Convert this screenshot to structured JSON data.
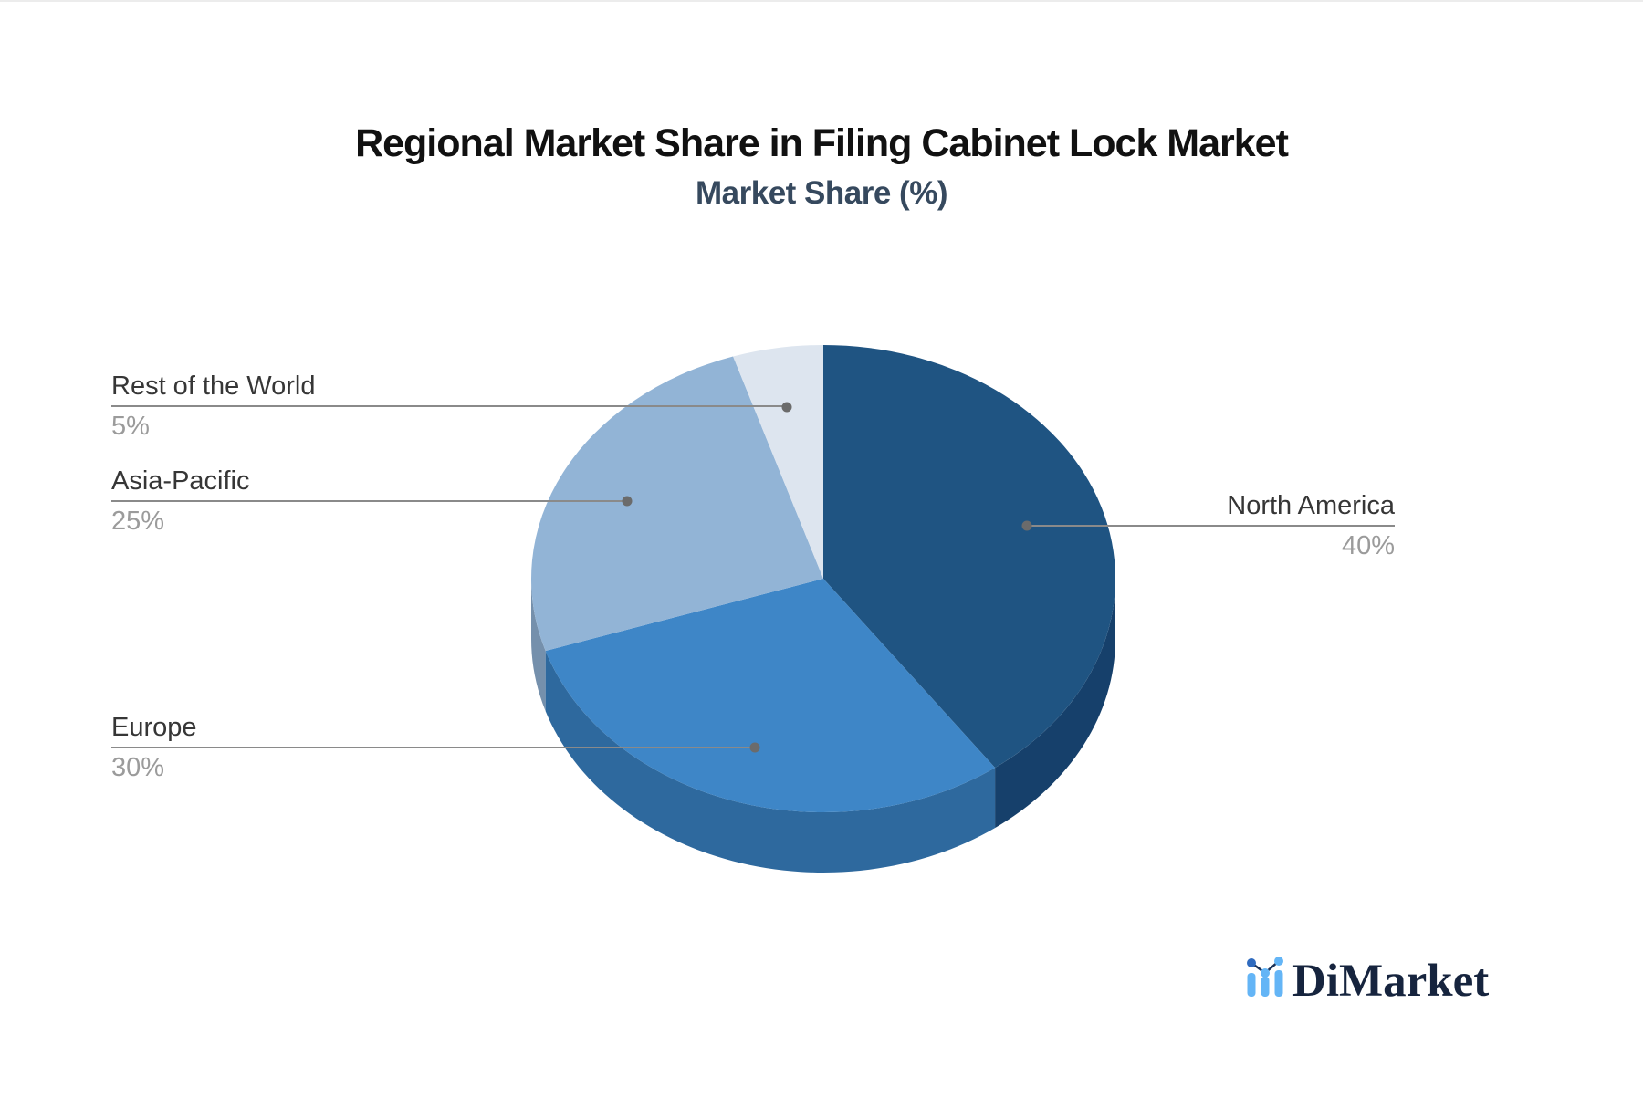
{
  "title": "Regional Market Share in Filing Cabinet Lock Market",
  "subtitle": "Market Share (%)",
  "chart_data": {
    "type": "pie",
    "style": "3d",
    "unit": "%",
    "start_angle_deg": 0,
    "direction": "clockwise",
    "legend_position": "callout-labels",
    "slices": [
      {
        "label": "North America",
        "value": 40,
        "display_value": "40%",
        "color": "#1F5482",
        "side_color": "#16406B",
        "label_side": "right"
      },
      {
        "label": "Europe",
        "value": 30,
        "display_value": "30%",
        "color": "#3E86C7",
        "side_color": "#2E699E",
        "label_side": "left"
      },
      {
        "label": "Asia-Pacific",
        "value": 25,
        "display_value": "25%",
        "color": "#92B4D6",
        "side_color": "#7590AC",
        "label_side": "left"
      },
      {
        "label": "Rest of the World",
        "value": 5,
        "display_value": "5%",
        "color": "#DDE5EF",
        "side_color": "#B9C6D6",
        "label_side": "left"
      }
    ]
  },
  "colors": {
    "background": "#FFFFFF",
    "title": "#111111",
    "subtitle": "#36495E",
    "label_text": "#363636",
    "value_text": "#9B9B9B",
    "callout_line": "#8A8A8A",
    "callout_dot": "#6B6B6B"
  },
  "logo": {
    "text": "DiMarket",
    "icon": "bar-chart-with-trend-dots-icon",
    "text_color": "#16243E",
    "bar_color": "#64B5F6",
    "dot_colors": [
      "#2F6BBF",
      "#64B5F6",
      "#64B5F6"
    ],
    "trend_line_color": "#1C3257"
  }
}
